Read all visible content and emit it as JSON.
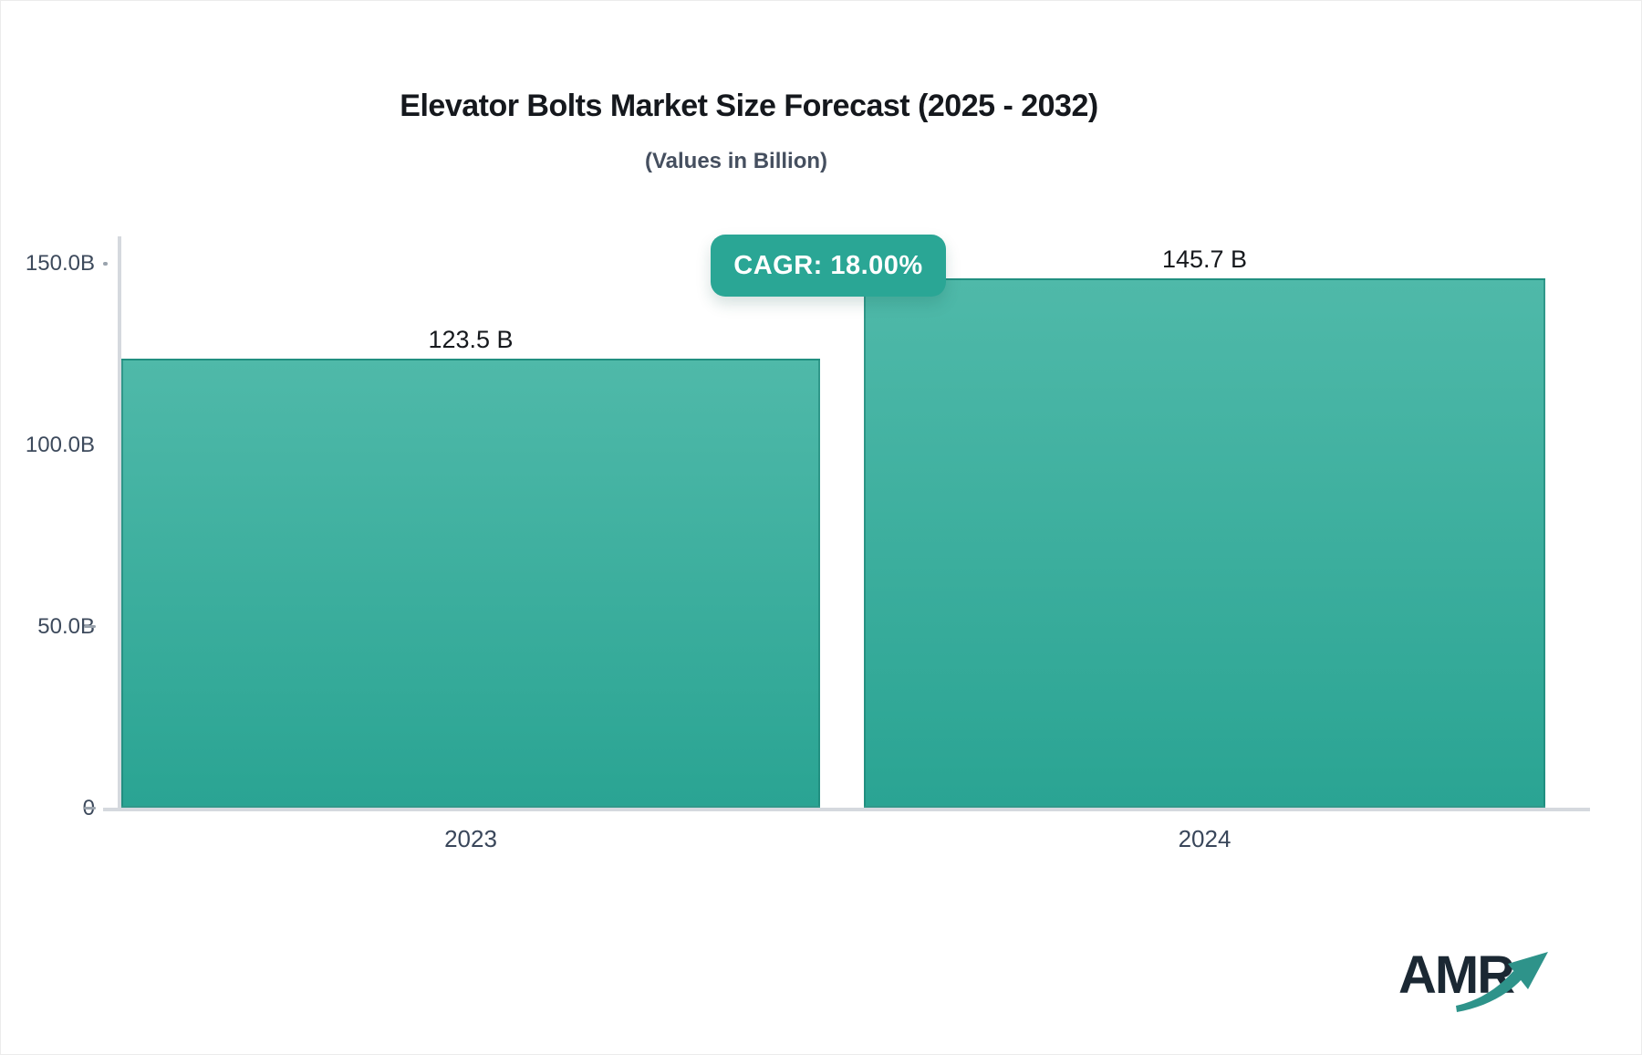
{
  "header": {
    "title": "Elevator Bolts Market Size Forecast (2025 - 2032)",
    "subtitle": "(Values in Billion)"
  },
  "cagr_badge": {
    "label": "CAGR: 18.00%",
    "color": "#2AA695"
  },
  "chart_data": {
    "type": "bar",
    "title": "Elevator Bolts Market Size Forecast (2025 - 2032)",
    "subtitle": "(Values in Billion)",
    "categories": [
      "2023",
      "2024"
    ],
    "values": [
      123.5,
      145.7
    ],
    "value_labels": [
      "123.5 B",
      "145.7 B"
    ],
    "xlabel": "",
    "ylabel": "",
    "ylim": [
      0,
      150
    ],
    "yticks": [
      {
        "value": 150,
        "label": "150.0B"
      },
      {
        "value": 100,
        "label": "100.0B"
      },
      {
        "value": 50,
        "label": "50.0B"
      },
      {
        "value": 0,
        "label": "0"
      }
    ],
    "grid": false,
    "legend": false,
    "bar_color_top": "#4FB9A9",
    "bar_color_bottom": "#2AA493",
    "bar_border_color": "#1A7D71",
    "axis_color": "#D5D9DE"
  },
  "logo": {
    "text": "AMR",
    "arrow_icon": "growth-arrow-icon",
    "text_color": "#1B2833",
    "arrow_color": "#2E938A"
  }
}
